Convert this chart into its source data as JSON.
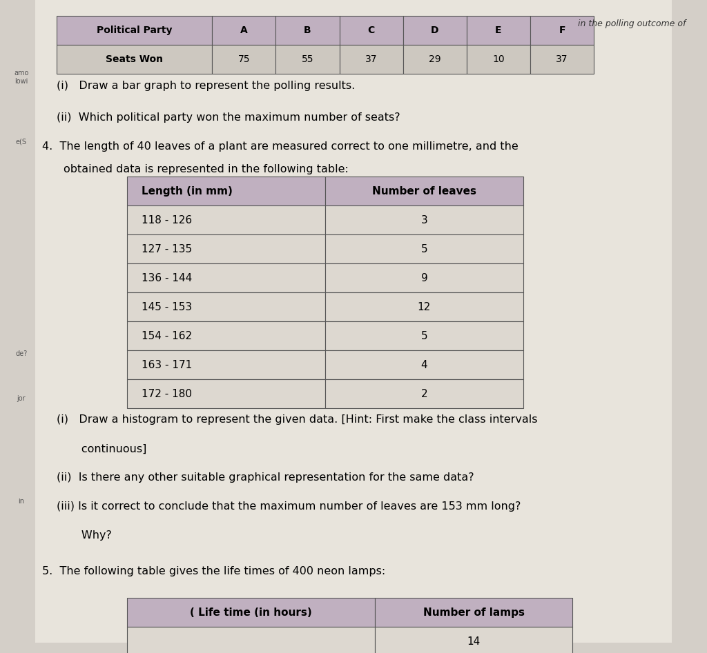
{
  "bg_color": "#d4cfc8",
  "page_bg": "#e8e4dc",
  "table1": {
    "headers": [
      "Political Party",
      "A",
      "B",
      "C",
      "D",
      "E",
      "F"
    ],
    "row_label": "Seats Won",
    "values": [
      "75",
      "55",
      "37",
      "29",
      "10",
      "37"
    ]
  },
  "text_lines": [
    "(i)  Draw a bar graph to represent the polling results.",
    "(ii)  Which political party won the maximum number of seats?"
  ],
  "item4_intro": "4.  The length of 40 leaves of a plant are measured correct to one millimetre, and the\n    obtained data is represented in the following table:",
  "table2_headers": [
    "Length (in mm)",
    "Number of leaves"
  ],
  "table2_rows": [
    [
      "118 - 126",
      "3"
    ],
    [
      "127 - 135",
      "5"
    ],
    [
      "136 - 144",
      "9"
    ],
    [
      "145 - 153",
      "12"
    ],
    [
      "154 - 162",
      "5"
    ],
    [
      "163 - 171",
      "4"
    ],
    [
      "172 - 180",
      "2"
    ]
  ],
  "sub_questions": [
    "(i)   Draw a histogram to represent the given data. [Hint: First make the class intervals\n      continuous]",
    "(ii)  Is there any other suitable graphical representation for the same data?",
    "(iii) Is it correct to conclude that the maximum number of leaves are 153 mm long?\n      Why?"
  ],
  "item5_text": "5.  The following table gives the life times of 400 neon lamps:",
  "table3_headers": [
    "( Life time (in hours)",
    "Number of lamps"
  ],
  "side_text_left": [
    "amo\nlowi",
    "e(S",
    "de?",
    "jor",
    "in"
  ],
  "top_right_text": "in the polling outcome of",
  "font_size_main": 13,
  "font_size_small": 11,
  "table_header_color": "#c8b8c8",
  "table_row_color": "#ddd8d0"
}
